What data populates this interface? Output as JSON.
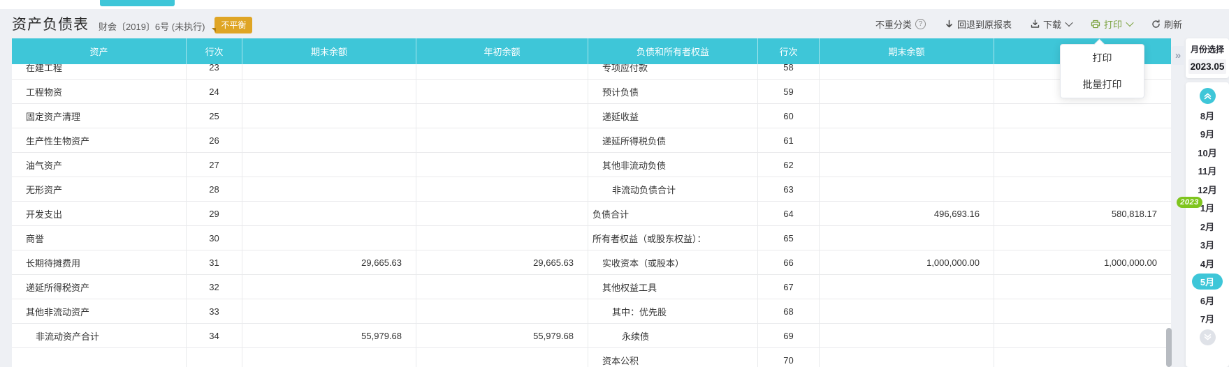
{
  "colors": {
    "accent": "#3ec6d8",
    "badge": "#dfa524",
    "print_active": "#7ba23f",
    "year_badge_green": "#7fc51e"
  },
  "header": {
    "title": "资产负债表",
    "subtitle": "财会〔2019〕6号 (未执行)",
    "badge": "不平衡",
    "toolbar": {
      "reclassify": "不重分类",
      "revert": "回退到原报表",
      "download": "下载",
      "print": "打印",
      "refresh": "刷新"
    }
  },
  "print_menu": {
    "items": [
      "打印",
      "批量打印"
    ]
  },
  "table": {
    "headers": [
      "资产",
      "行次",
      "期末余额",
      "年初余额",
      "负债和所有者权益",
      "行次",
      "期末余额",
      ""
    ],
    "rows": [
      {
        "asset": "在建工程",
        "asset_row": "23",
        "asset_end": "",
        "asset_begin": "",
        "asset_indent": 1,
        "liability": "专项应付款",
        "liability_row": "58",
        "liability_end": "",
        "liability_begin": "",
        "liability_indent": 1
      },
      {
        "asset": "工程物资",
        "asset_row": "24",
        "asset_end": "",
        "asset_begin": "",
        "asset_indent": 1,
        "liability": "预计负债",
        "liability_row": "59",
        "liability_end": "",
        "liability_begin": "",
        "liability_indent": 1
      },
      {
        "asset": "固定资产清理",
        "asset_row": "25",
        "asset_end": "",
        "asset_begin": "",
        "asset_indent": 1,
        "liability": "递延收益",
        "liability_row": "60",
        "liability_end": "",
        "liability_begin": "",
        "liability_indent": 1
      },
      {
        "asset": "生产性生物资产",
        "asset_row": "26",
        "asset_end": "",
        "asset_begin": "",
        "asset_indent": 1,
        "liability": "递延所得税负债",
        "liability_row": "61",
        "liability_end": "",
        "liability_begin": "",
        "liability_indent": 1
      },
      {
        "asset": "油气资产",
        "asset_row": "27",
        "asset_end": "",
        "asset_begin": "",
        "asset_indent": 1,
        "liability": "其他非流动负债",
        "liability_row": "62",
        "liability_end": "",
        "liability_begin": "",
        "liability_indent": 1
      },
      {
        "asset": "无形资产",
        "asset_row": "28",
        "asset_end": "",
        "asset_begin": "",
        "asset_indent": 1,
        "liability": "非流动负债合计",
        "liability_row": "63",
        "liability_end": "",
        "liability_begin": "",
        "liability_indent": 2
      },
      {
        "asset": "开发支出",
        "asset_row": "29",
        "asset_end": "",
        "asset_begin": "",
        "asset_indent": 1,
        "liability": "负债合计",
        "liability_row": "64",
        "liability_end": "496,693.16",
        "liability_begin": "580,818.17",
        "liability_indent": 0
      },
      {
        "asset": "商誉",
        "asset_row": "30",
        "asset_end": "",
        "asset_begin": "",
        "asset_indent": 1,
        "liability": "所有者权益（或股东权益）：",
        "liability_row": "65",
        "liability_end": "",
        "liability_begin": "",
        "liability_indent": 0
      },
      {
        "asset": "长期待摊费用",
        "asset_row": "31",
        "asset_end": "29,665.63",
        "asset_begin": "29,665.63",
        "asset_indent": 1,
        "liability": "实收资本（或股本）",
        "liability_row": "66",
        "liability_end": "1,000,000.00",
        "liability_begin": "1,000,000.00",
        "liability_indent": 1
      },
      {
        "asset": "递延所得税资产",
        "asset_row": "32",
        "asset_end": "",
        "asset_begin": "",
        "asset_indent": 1,
        "liability": "其他权益工具",
        "liability_row": "67",
        "liability_end": "",
        "liability_begin": "",
        "liability_indent": 1
      },
      {
        "asset": "其他非流动资产",
        "asset_row": "33",
        "asset_end": "",
        "asset_begin": "",
        "asset_indent": 1,
        "liability": "其中：优先股",
        "liability_row": "68",
        "liability_end": "",
        "liability_begin": "",
        "liability_indent": 2
      },
      {
        "asset": "非流动资产合计",
        "asset_row": "34",
        "asset_end": "55,979.68",
        "asset_begin": "55,979.68",
        "asset_indent": 2,
        "liability": "永续债",
        "liability_row": "69",
        "liability_end": "",
        "liability_begin": "",
        "liability_indent": 3
      },
      {
        "asset": "",
        "asset_row": "",
        "asset_end": "",
        "asset_begin": "",
        "asset_indent": 1,
        "liability": "资本公积",
        "liability_row": "70",
        "liability_end": "",
        "liability_begin": "",
        "liability_indent": 1
      }
    ]
  },
  "sidebar": {
    "title": "月份选择",
    "period": "2023.05",
    "year_badge": "2023",
    "months": [
      {
        "label": "8月"
      },
      {
        "label": "9月"
      },
      {
        "label": "10月"
      },
      {
        "label": "11月"
      },
      {
        "label": "12月"
      },
      {
        "label": "1月"
      },
      {
        "label": "2月"
      },
      {
        "label": "3月"
      },
      {
        "label": "4月"
      },
      {
        "label": "5月",
        "active": true
      },
      {
        "label": "6月"
      },
      {
        "label": "7月"
      }
    ]
  }
}
